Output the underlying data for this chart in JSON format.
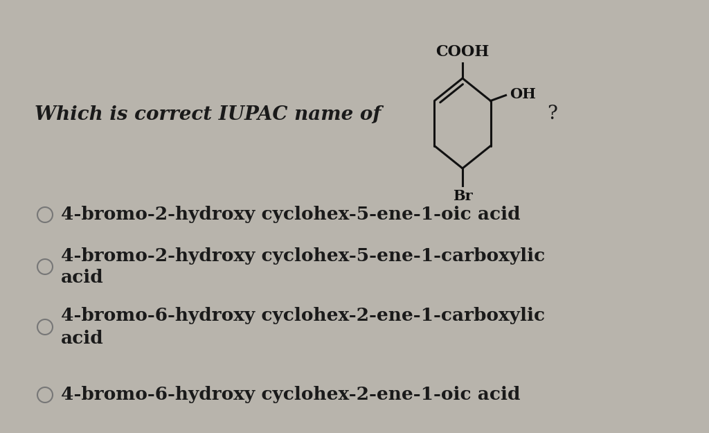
{
  "background_color": "#b8b4ac",
  "question_text": "Which is correct IUPAC name of",
  "question_mark": "?",
  "options": [
    "4-bromo-2-hydroxy cyclohex-5-ene-1-oic acid",
    "4-bromo-2-hydroxy cyclohex-5-ene-1-carboxylic\nacid",
    "4-bromo-6-hydroxy cyclohex-2-ene-1-carboxylic\nacid",
    "4-bromo-6-hydroxy cyclohex-2-ene-1-oic acid"
  ],
  "question_fontsize": 20,
  "option_fontsize": 19,
  "text_color": "#1a1a1a",
  "radio_color": "#777777",
  "cooh_label": "COOH",
  "oh_label": "OH",
  "br_label": "Br"
}
